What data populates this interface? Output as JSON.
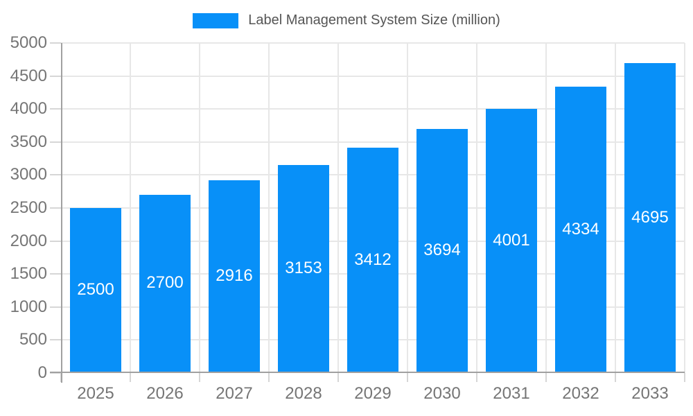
{
  "chart_data": {
    "type": "bar",
    "title": "Label Management System Size (million)",
    "legend": [
      "Label Management System Size (million)"
    ],
    "legend_position": "top",
    "categories": [
      "2025",
      "2026",
      "2027",
      "2028",
      "2029",
      "2030",
      "2031",
      "2032",
      "2033"
    ],
    "values": [
      2500,
      2700,
      2916,
      3153,
      3412,
      3694,
      4001,
      4334,
      4695
    ],
    "xlabel": "",
    "ylabel": "",
    "ylim": [
      0,
      5000
    ],
    "yticks": [
      0,
      500,
      1000,
      1500,
      2000,
      2500,
      3000,
      3500,
      4000,
      4500,
      5000
    ],
    "grid": true,
    "bar_color": "#0890F8",
    "bar_label_color": "#FFFFFF"
  },
  "style": {
    "background": "#FFFFFF",
    "grid_color": "#E7E7E7",
    "axis_color": "#A0A0A0",
    "tick_color": "#D6D6D6",
    "tick_label_color": "#757575",
    "legend_text_color": "#555555"
  }
}
